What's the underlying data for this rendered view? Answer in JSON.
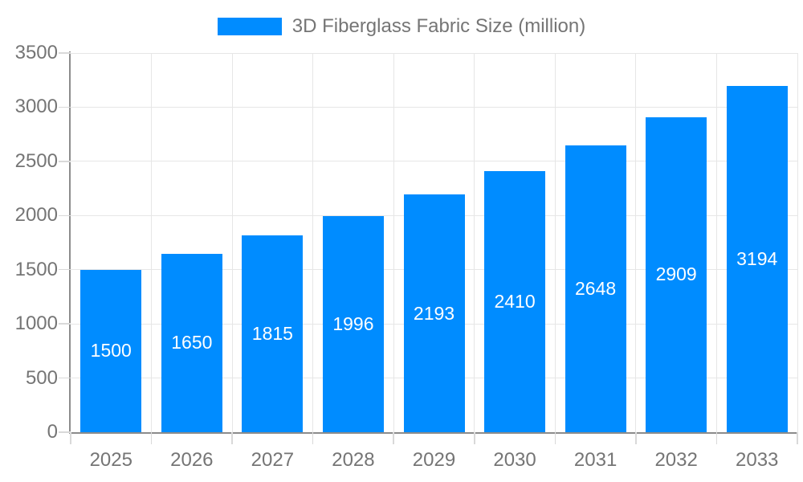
{
  "legend": {
    "label": "3D Fiberglass Fabric Size (million)"
  },
  "chart_data": {
    "type": "bar",
    "title": "",
    "series_name": "3D Fiberglass Fabric Size (million)",
    "categories": [
      "2025",
      "2026",
      "2027",
      "2028",
      "2029",
      "2030",
      "2031",
      "2032",
      "2033"
    ],
    "values": [
      1500,
      1650,
      1815,
      1996,
      2193,
      2410,
      2648,
      2909,
      3194
    ],
    "xlabel": "",
    "ylabel": "",
    "ylim": [
      0,
      3500
    ],
    "yticks": [
      0,
      500,
      1000,
      1500,
      2000,
      2500,
      3000,
      3500
    ],
    "grid": true,
    "legend_position": "top-center",
    "value_labels": "inside-center"
  },
  "colors": {
    "bar": "#008CFF",
    "grid": "#E6E6E6",
    "axis_line": "#8C8C8C",
    "tick": "#D9D9D9",
    "axis_text": "#757575",
    "legend_text": "#757575",
    "value_label_text": "#FFFFFF",
    "background": "#FFFFFF"
  }
}
